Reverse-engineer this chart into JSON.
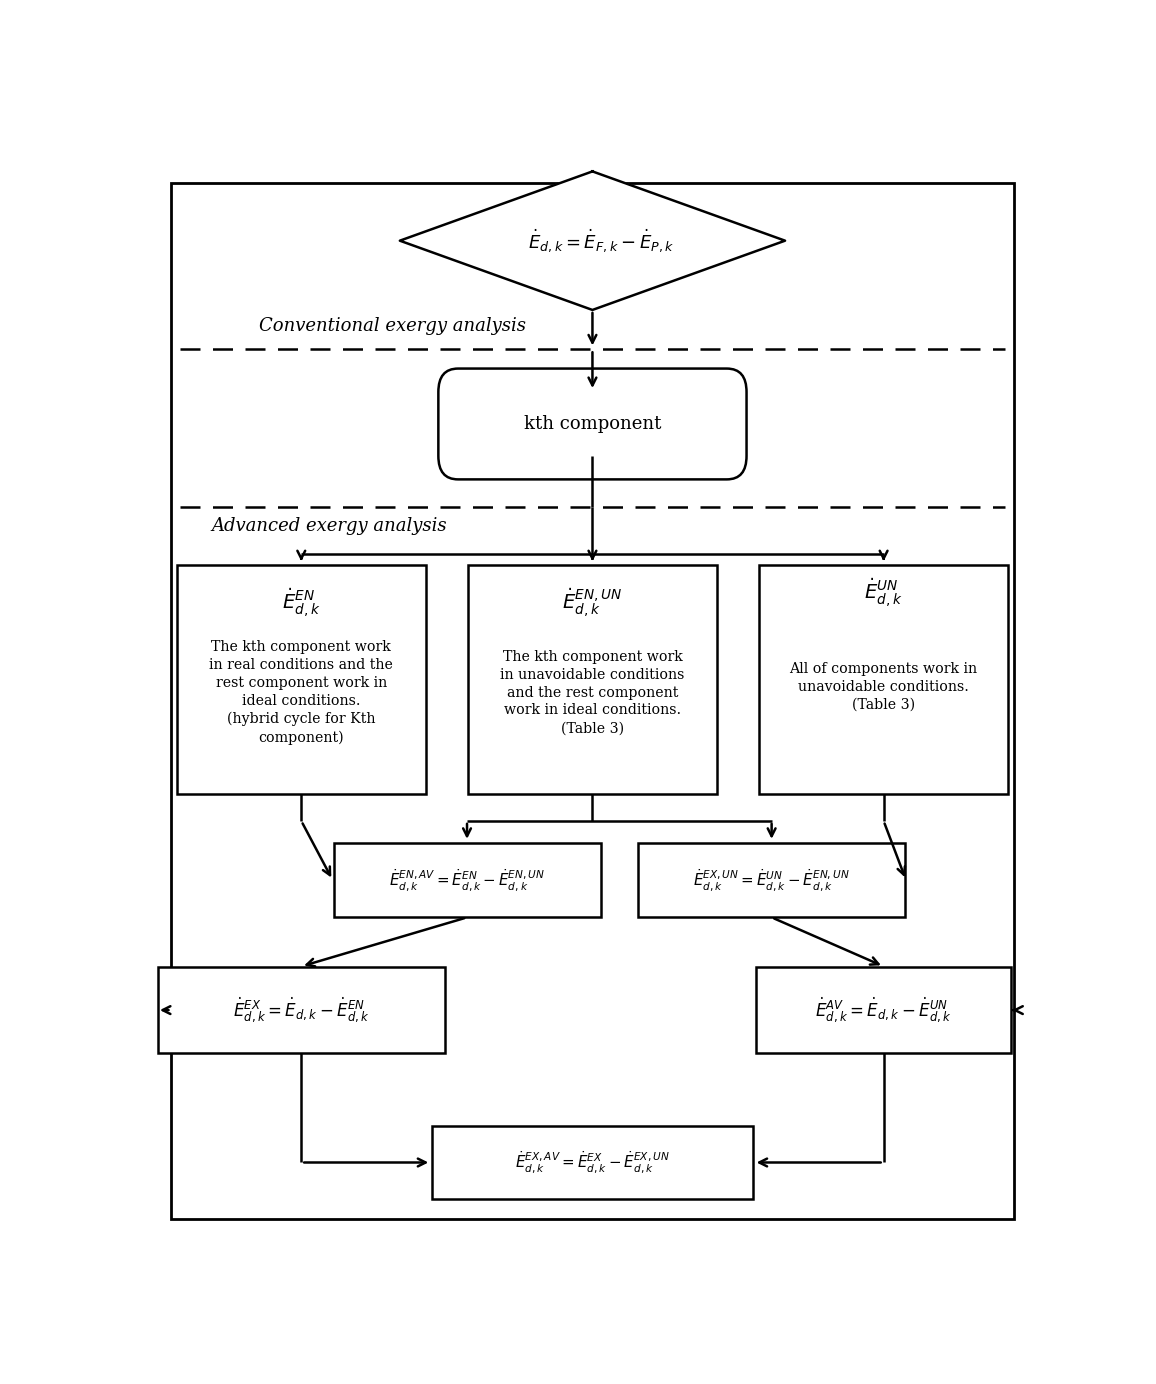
{
  "fig_width": 11.56,
  "fig_height": 13.84,
  "diamond_formula": "$\\dot{E}_{d,k} = \\dot{E}_{F,k} - \\dot{E}_{P,k}$",
  "conv_label": "Conventional exergy analysis",
  "roundbox_label": "kth component",
  "adv_label": "Advanced exergy analysis",
  "box_left_formula": "$\\dot{E}^{EN}_{d,k}$",
  "box_left_text": "The kth component work\nin real conditions and the\nrest component work in\nideal conditions.\n(hybrid cycle for Kth\ncomponent)",
  "box_mid_formula": "$\\dot{E}^{EN,UN}_{d,k}$",
  "box_mid_text": "The kth component work\nin unavoidable conditions\nand the rest component\nwork in ideal conditions.\n(Table 3)",
  "box_right_formula": "$\\dot{E}^{UN}_{d,k}$",
  "box_right_text": "All of components work in\nunavoidable conditions.\n(Table 3)",
  "enav_formula": "$\\dot{E}^{EN,AV}_{d,k} = \\dot{E}^{EN}_{d,k} - \\dot{E}^{EN,UN}_{d,k}$",
  "exun_formula": "$\\dot{E}^{EX,UN}_{d,k} = \\dot{E}^{UN}_{d,k} - \\dot{E}^{EN,UN}_{d,k}$",
  "ex_formula": "$\\dot{E}^{EX}_{d,k} = \\dot{E}_{d,k} - \\dot{E}^{EN}_{d,k}$",
  "av_formula": "$\\dot{E}^{AV}_{d,k} = \\dot{E}_{d,k} - \\dot{E}^{UN}_{d,k}$",
  "exav_formula": "$\\dot{E}^{EX,AV}_{d,k} = \\dot{E}^{EX}_{d,k} - \\dot{E}^{EX,UN}_{d,k}$"
}
